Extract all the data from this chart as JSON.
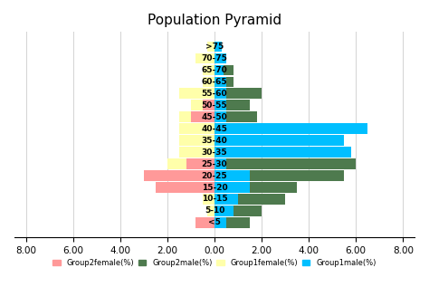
{
  "title": "Population Pyramid",
  "age_groups": [
    "<5",
    "5-10",
    "10-15",
    "15-20",
    "20-25",
    "25-30",
    "30-35",
    "35-40",
    "40-45",
    "45-50",
    "50-55",
    "55-60",
    "60-65",
    "65-70",
    "70-75",
    ">75"
  ],
  "group2_female": [
    0.8,
    0.0,
    0.0,
    2.5,
    3.0,
    1.2,
    0.0,
    0.0,
    0.0,
    1.0,
    0.5,
    0.0,
    0.0,
    0.0,
    0.0,
    0.0
  ],
  "group2_male": [
    1.5,
    2.0,
    3.0,
    3.5,
    5.5,
    6.0,
    2.5,
    2.0,
    2.0,
    1.8,
    1.5,
    2.0,
    0.8,
    0.8,
    0.5,
    0.3
  ],
  "group1_female": [
    0.0,
    0.3,
    0.5,
    0.5,
    2.0,
    2.0,
    1.5,
    1.5,
    1.5,
    1.5,
    1.0,
    1.5,
    0.5,
    0.5,
    0.8,
    0.3
  ],
  "group1_male": [
    0.5,
    0.8,
    1.0,
    1.5,
    1.5,
    0.5,
    5.8,
    5.5,
    6.5,
    0.5,
    0.5,
    0.5,
    0.5,
    0.4,
    0.5,
    0.3
  ],
  "color_group2_female": "#FF9999",
  "color_group2_male": "#4E7A4E",
  "color_group1_female": "#FFFFAA",
  "color_group1_male": "#00BFFF",
  "xlim": [
    -8.5,
    8.5
  ],
  "xticks": [
    -8,
    -6,
    -4,
    -2,
    0,
    2,
    4,
    6,
    8
  ],
  "xticklabels": [
    "8.00",
    "6.00",
    "4.00",
    "2.00",
    "0.00",
    "2.00",
    "4.00",
    "6.00",
    "8.00"
  ],
  "legend_labels": [
    "Group2female(%)",
    "Group2male(%)",
    "Group1female(%)",
    "Group1male(%)"
  ],
  "background_color": "#FFFFFF",
  "bar_height": 0.9
}
